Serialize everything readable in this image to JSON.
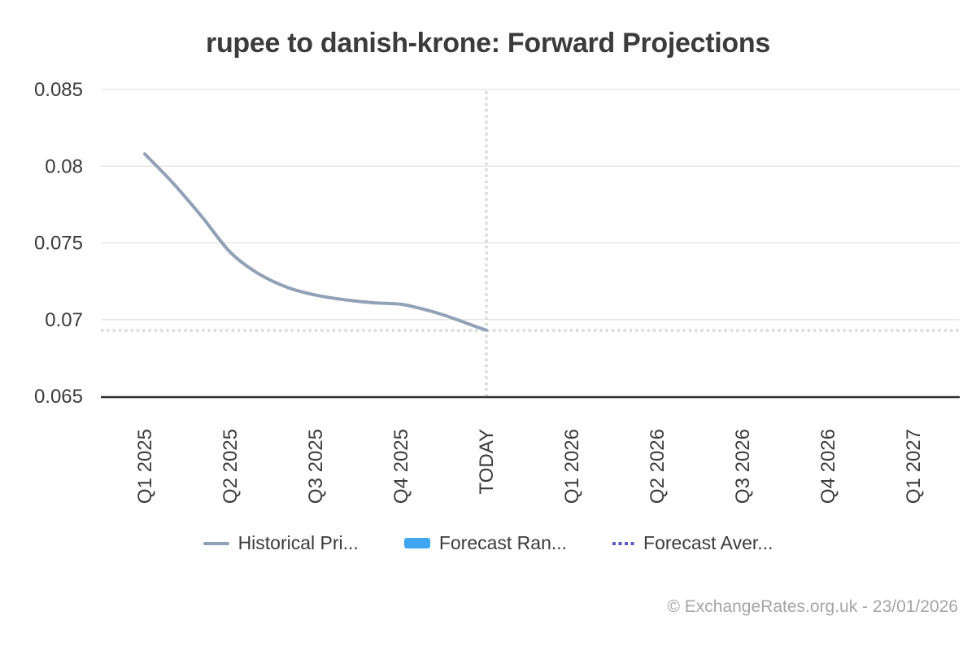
{
  "title": "rupee to danish-krone: Forward Projections",
  "footer": "© ExchangeRates.org.uk - 23/01/2026",
  "legend": {
    "position": "bottom",
    "items": [
      {
        "label": "Historical Pri...",
        "swatch": "line",
        "color": "#91a1b6"
      },
      {
        "label": "Forecast Ran...",
        "swatch": "area",
        "color": "#3fa6f4"
      },
      {
        "label": "Forecast Aver...",
        "swatch": "dotted",
        "color": "#5a5ec4"
      }
    ]
  },
  "colors": {
    "background": "#ffffff",
    "text": "#3b3b3b",
    "muted_text": "#a5a5a5",
    "grid": "#e2e2e2",
    "axis": "#2e2e2e",
    "dotted_crosshair": "#dbdce0",
    "historical_line": "#91a1b6",
    "forecast_range": "#3fa6f4",
    "forecast_average": "#5a5ec4"
  },
  "chart_data": {
    "type": "line",
    "title": "rupee to danish-krone: Forward Projections",
    "x_categories": [
      "Q1 2025",
      "Q2 2025",
      "Q3 2025",
      "Q4 2025",
      "TODAY",
      "Q1 2026",
      "Q2 2026",
      "Q3 2026",
      "Q4 2026",
      "Q1 2027"
    ],
    "y_tick_labels": [
      "0.085",
      "0.08",
      "0.075",
      "0.07",
      "0.065"
    ],
    "y_tick_values": [
      0.085,
      0.08,
      0.075,
      0.07,
      0.065
    ],
    "ylim": [
      0.065,
      0.085
    ],
    "grid": true,
    "series": [
      {
        "name": "Historical Pri...",
        "type": "line",
        "color": "#91a1b6",
        "x_quarter_index": [
          0,
          0.33,
          0.67,
          1,
          1.33,
          1.67,
          2,
          2.33,
          2.67,
          3,
          3.25,
          3.5,
          3.75,
          4
        ],
        "values": [
          0.0808,
          0.0789,
          0.0767,
          0.0744,
          0.073,
          0.0721,
          0.0716,
          0.0713,
          0.0711,
          0.071,
          0.0707,
          0.0703,
          0.0698,
          0.0693
        ],
        "quarter_values": {
          "Q1 2025": 0.0808,
          "Q2 2025": 0.0744,
          "Q3 2025": 0.0716,
          "Q4 2025": 0.071,
          "TODAY": 0.0693
        }
      },
      {
        "name": "Forecast Ran...",
        "type": "area",
        "color": "#3fa6f4",
        "values": []
      },
      {
        "name": "Forecast Aver...",
        "type": "dotted-line",
        "color": "#5a5ec4",
        "values": []
      }
    ],
    "annotations": {
      "today_category": "TODAY",
      "today_index": 4,
      "last_price": 0.0693,
      "vertical_dotted_line_at_index": 4,
      "horizontal_dotted_line_y": 0.0693
    }
  }
}
